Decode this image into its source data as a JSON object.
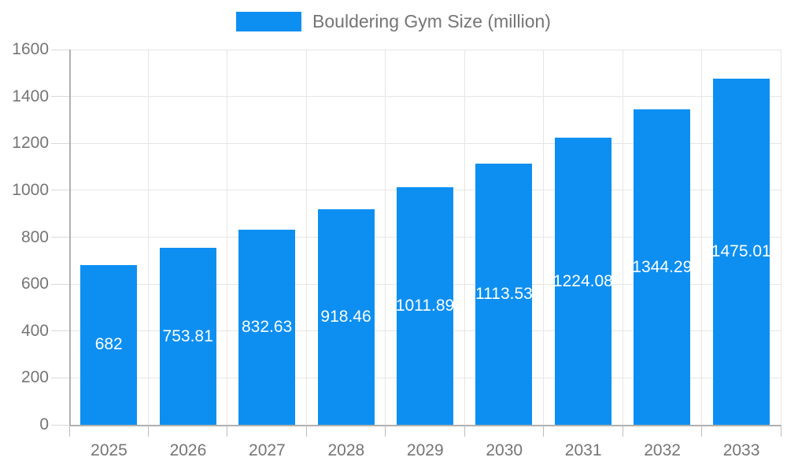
{
  "legend": {
    "label": "Bouldering Gym Size (million)"
  },
  "colors": {
    "bar": "#0d8ff2",
    "bar_value_text": "#ffffff",
    "axis_line": "#b0b0b0",
    "gridline": "#e6e6e6",
    "tick_text": "#757575",
    "legend_text": "#757575"
  },
  "chart_data": {
    "type": "bar",
    "title": "",
    "xlabel": "",
    "ylabel": "",
    "legend_entries": [
      "Bouldering Gym Size (million)"
    ],
    "legend_position": "top-center",
    "grid": true,
    "categories": [
      "2025",
      "2026",
      "2027",
      "2028",
      "2029",
      "2030",
      "2031",
      "2032",
      "2033"
    ],
    "values": [
      682,
      753.81,
      832.63,
      918.46,
      1011.89,
      1113.53,
      1224.08,
      1344.29,
      1475.01
    ],
    "value_labels": [
      "682",
      "753.81",
      "832.63",
      "918.46",
      "1011.89",
      "1113.53",
      "1224.08",
      "1344.29",
      "1475.01"
    ],
    "ylim": [
      0,
      1600
    ],
    "yticks": [
      0,
      200,
      400,
      600,
      800,
      1000,
      1200,
      1400,
      1600
    ],
    "ytick_labels": [
      "0",
      "200",
      "400",
      "600",
      "800",
      "1000",
      "1200",
      "1400",
      "1600"
    ]
  }
}
